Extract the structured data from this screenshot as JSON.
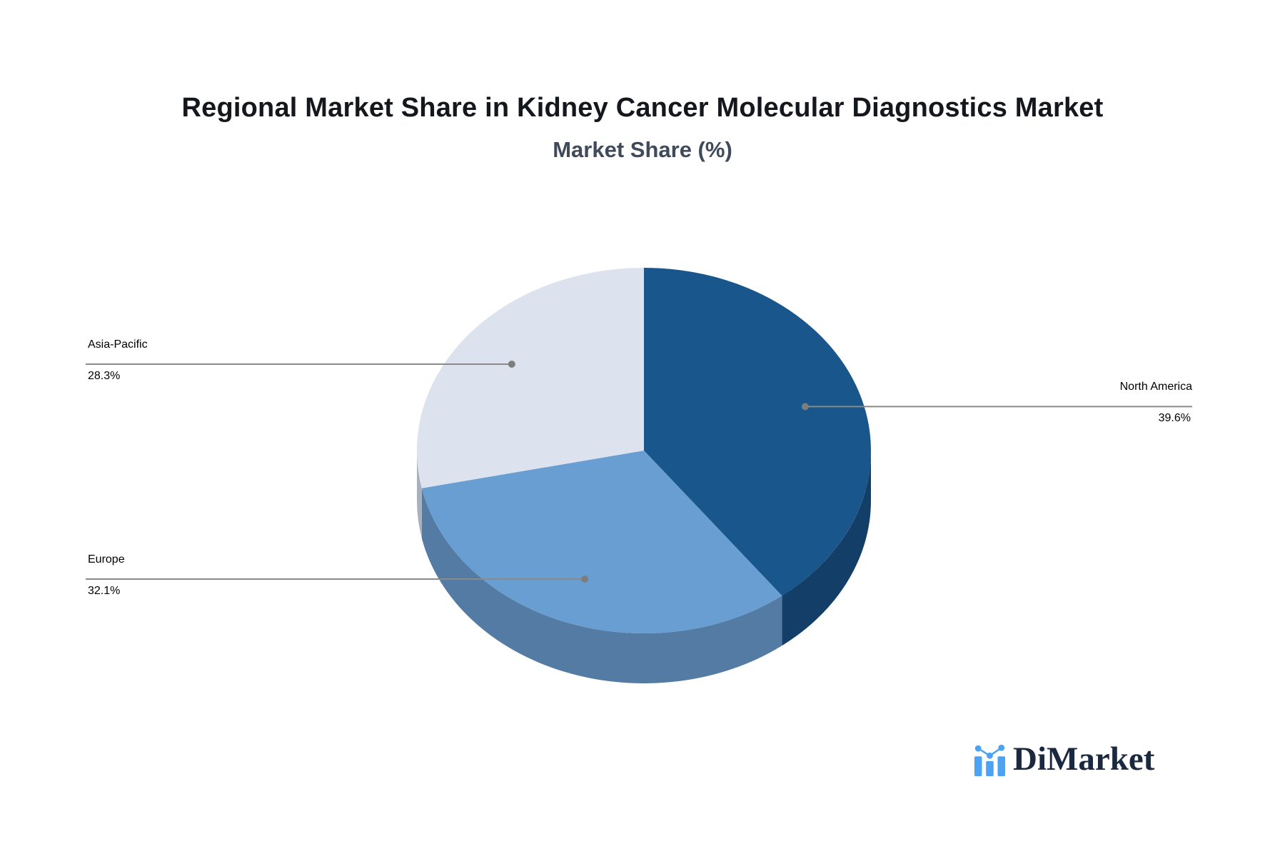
{
  "title": "Regional Market Share in Kidney Cancer Molecular Diagnostics Market",
  "subtitle": "Market Share (%)",
  "brand": {
    "name": "DiMarket",
    "icon": "bar-chart-logo-icon",
    "text_color": "#1a2940",
    "icon_color": "#4ba3f2"
  },
  "chart_data": {
    "type": "pie",
    "title": "Regional Market Share in Kidney Cancer Molecular Diagnostics Market",
    "subtitle": "Market Share (%)",
    "unit": "%",
    "effect": "3d",
    "start_angle": "12-o-clock",
    "direction": "clockwise",
    "legend_position": "none",
    "labels_layout": "outside-with-leader-lines",
    "slices": [
      {
        "label": "North America",
        "value": 39.6,
        "display": "39.6%",
        "color": "#19568c",
        "side_color": "#123e68"
      },
      {
        "label": "Europe",
        "value": 32.1,
        "display": "32.1%",
        "color": "#689ed1",
        "side_color": "#537ba3"
      },
      {
        "label": "Asia-Pacific",
        "value": 28.3,
        "display": "28.3%",
        "color": "#dde3ee",
        "side_color": "#a7b0bf"
      }
    ],
    "label_name_color": "#262626",
    "label_value_color": "#a6a6a6",
    "leader_line_color": "#8a8a8a",
    "leader_dot_color": "#7d7d7d"
  }
}
